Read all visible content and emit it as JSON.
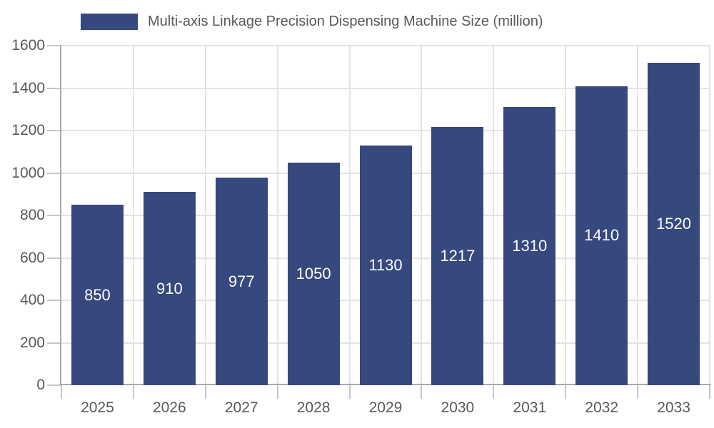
{
  "chart_data": {
    "type": "bar",
    "title": "Multi-axis Linkage Precision Dispensing Machine Size (million)",
    "legend": [
      "Multi-axis Linkage Precision Dispensing Machine Size (million)"
    ],
    "legend_position": "top-left",
    "categories": [
      "2025",
      "2026",
      "2027",
      "2028",
      "2029",
      "2030",
      "2031",
      "2032",
      "2033"
    ],
    "values": [
      850,
      910,
      977,
      1050,
      1130,
      1217,
      1310,
      1410,
      1520
    ],
    "xlabel": "",
    "ylabel": "",
    "ylim": [
      0,
      1600
    ],
    "yticks": [
      0,
      200,
      400,
      600,
      800,
      1000,
      1200,
      1400,
      1600
    ],
    "grid": true,
    "bar_labels_visible": true,
    "colors": {
      "bar": "#36487E",
      "bar_label": "#FFFFFF",
      "grid": "#E3E3E6",
      "axis": "#A9A9AD",
      "tick": "#C6C6CA",
      "text": "#58595D",
      "background": "#FFFFFF"
    }
  }
}
